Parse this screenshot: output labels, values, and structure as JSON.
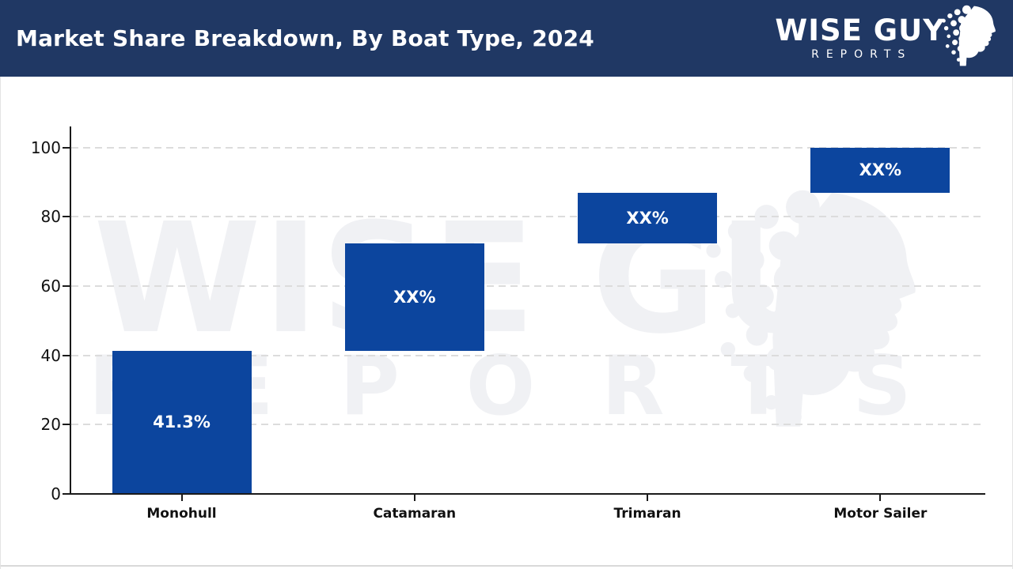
{
  "header": {
    "title": "Market Share Breakdown, By Boat Type, 2024",
    "bg_color": "#203864",
    "logo": {
      "line1": "WISE GUY",
      "line2": "REPORTS"
    }
  },
  "watermark": {
    "line1": "WISE GU",
    "line2": "R E P O R T S"
  },
  "chart_data": {
    "type": "waterfall",
    "title": "Market Share Breakdown, By Boat Type, 2024",
    "categories": [
      "Monohull",
      "Catamaran",
      "Trimaran",
      "Motor Sailer"
    ],
    "segments": [
      {
        "category": "Monohull",
        "start": 0,
        "end": 41.3,
        "label": "41.3%"
      },
      {
        "category": "Catamaran",
        "start": 41.3,
        "end": 72.3,
        "label": "XX%"
      },
      {
        "category": "Trimaran",
        "start": 72.3,
        "end": 87.0,
        "label": "XX%"
      },
      {
        "category": "Motor Sailer",
        "start": 87.0,
        "end": 100,
        "label": "XX%"
      }
    ],
    "xlabel": "",
    "ylabel": "",
    "ylim": [
      0,
      106
    ],
    "yticks": [
      0,
      20,
      40,
      60,
      80,
      100
    ],
    "grid": "horizontal dashed, at y=20,40,60,80,100",
    "legend": "none",
    "bar_color": "#0c459e",
    "bar_label_color": "#ffffff",
    "axis_color": "#1a1a1a",
    "gridline_color": "#dcdcdc"
  }
}
